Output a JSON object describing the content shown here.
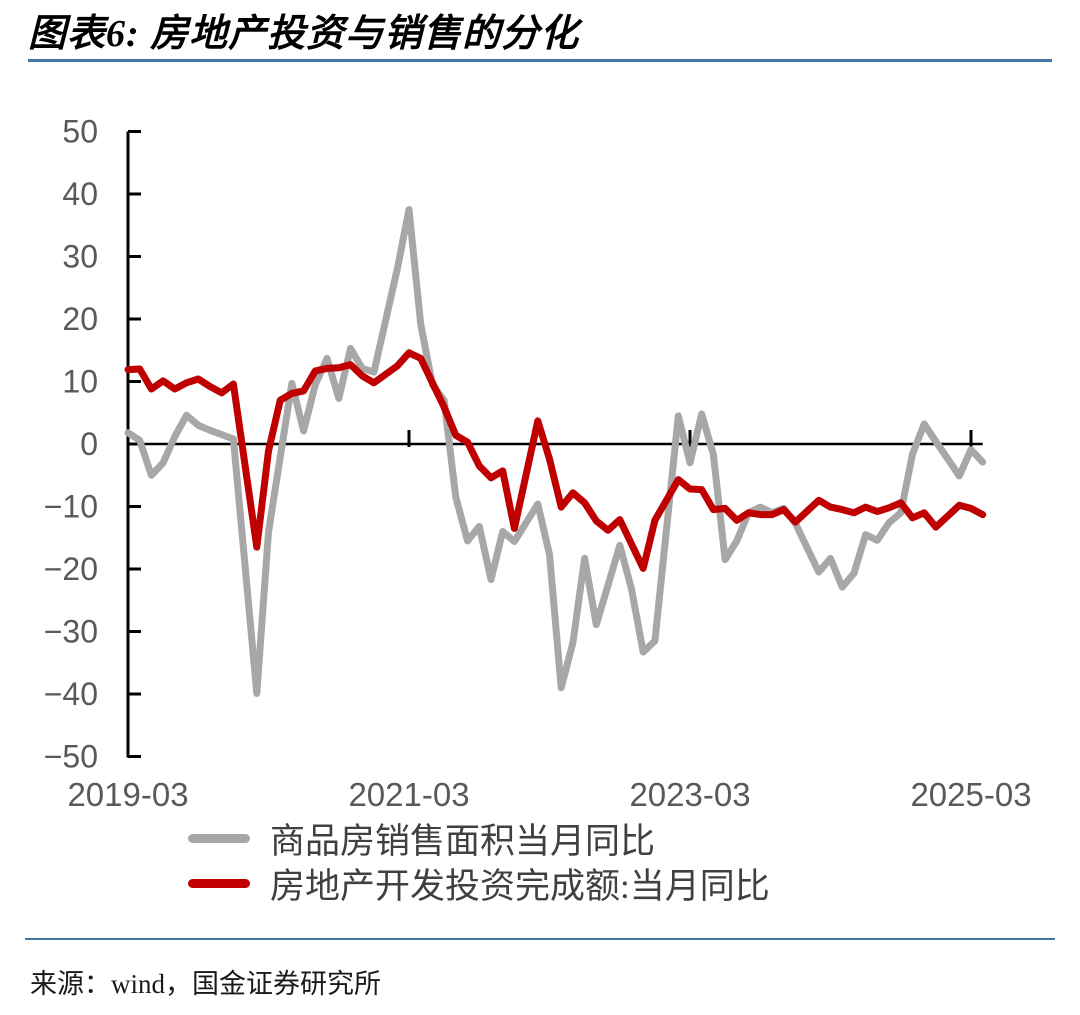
{
  "header": {
    "title": "图表6: 房地产投资与销售的分化"
  },
  "footer": {
    "source": "来源：wind，国金证券研究所"
  },
  "colors": {
    "sales_line": "#A7A7A7",
    "investment_line": "#C00000",
    "axis": "#000000",
    "tick_label": "#595959",
    "rule_blue": "#3F76A3",
    "legend_text": "#404040"
  },
  "legend": [
    {
      "label": "商品房销售面积当月同比",
      "color": "#A7A7A7"
    },
    {
      "label": "房地产开发投资完成额:当月同比",
      "color": "#C00000"
    }
  ],
  "chart_data": {
    "type": "line",
    "x": [
      "2019-03",
      "2019-04",
      "2019-05",
      "2019-06",
      "2019-07",
      "2019-08",
      "2019-09",
      "2019-10",
      "2019-11",
      "2019-12",
      "2020-01",
      "2020-02",
      "2020-03",
      "2020-04",
      "2020-05",
      "2020-06",
      "2020-07",
      "2020-08",
      "2020-09",
      "2020-10",
      "2020-11",
      "2020-12",
      "2021-01",
      "2021-02",
      "2021-03",
      "2021-04",
      "2021-05",
      "2021-06",
      "2021-07",
      "2021-08",
      "2021-09",
      "2021-10",
      "2021-11",
      "2021-12",
      "2022-01",
      "2022-02",
      "2022-03",
      "2022-04",
      "2022-05",
      "2022-06",
      "2022-07",
      "2022-08",
      "2022-09",
      "2022-10",
      "2022-11",
      "2022-12",
      "2023-01",
      "2023-02",
      "2023-03",
      "2023-04",
      "2023-05",
      "2023-06",
      "2023-07",
      "2023-08",
      "2023-09",
      "2023-10",
      "2023-11",
      "2023-12",
      "2024-01",
      "2024-02",
      "2024-03",
      "2024-04",
      "2024-05",
      "2024-06",
      "2024-07",
      "2024-08",
      "2024-09",
      "2024-10",
      "2024-11",
      "2024-12",
      "2025-01",
      "2025-02",
      "2025-03",
      "2025-04"
    ],
    "series": [
      {
        "name": "商品房销售面积当月同比",
        "color": "#A7A7A7",
        "values": [
          1.8,
          0.6,
          -5.0,
          -3.0,
          1.2,
          4.6,
          3.0,
          2.2,
          1.5,
          0.8,
          null,
          -39.9,
          -14.1,
          -2.1,
          9.7,
          2.1,
          9.5,
          13.7,
          7.3,
          15.3,
          12.1,
          11.5,
          null,
          28.0,
          37.5,
          19.2,
          9.5,
          7.0,
          -8.5,
          -15.5,
          -13.2,
          -21.7,
          -14.0,
          -15.6,
          null,
          -9.6,
          -17.7,
          -39.0,
          -31.8,
          -18.3,
          -28.9,
          -22.6,
          -16.2,
          -23.2,
          -33.3,
          -31.5,
          null,
          4.5,
          -3.0,
          4.8,
          -1.7,
          -18.5,
          -15.5,
          -11.0,
          -10.1,
          -11.0,
          -10.3,
          -12.7,
          null,
          -20.5,
          -18.3,
          -22.9,
          -20.7,
          -14.5,
          -15.4,
          -12.6,
          -11.0,
          -1.6,
          3.2,
          0.4,
          null,
          -5.1,
          -0.9,
          -2.9
        ]
      },
      {
        "name": "房地产开发投资完成额:当月同比",
        "color": "#C00000",
        "values": [
          11.9,
          12.0,
          8.8,
          10.1,
          8.8,
          9.8,
          10.4,
          9.2,
          8.2,
          9.6,
          null,
          -16.5,
          -1.1,
          7.0,
          8.1,
          8.5,
          11.7,
          12.1,
          12.2,
          12.7,
          10.9,
          9.8,
          null,
          12.5,
          14.6,
          13.7,
          9.8,
          5.9,
          1.4,
          0.3,
          -3.5,
          -5.4,
          -4.3,
          -13.5,
          null,
          3.7,
          -2.4,
          -10.1,
          -7.8,
          -9.4,
          -12.3,
          -13.8,
          -12.1,
          -16.0,
          -19.9,
          -12.2,
          null,
          -5.7,
          -7.2,
          -7.3,
          -10.5,
          -10.3,
          -12.2,
          -11.0,
          -11.3,
          -11.3,
          -10.5,
          -12.5,
          null,
          -9.0,
          -10.1,
          -10.5,
          -11.0,
          -10.1,
          -10.8,
          -10.2,
          -9.4,
          -11.8,
          -11.0,
          -13.3,
          null,
          -9.8,
          -10.3,
          -11.3
        ]
      }
    ],
    "ylim": [
      -50,
      50
    ],
    "yticks": [
      {
        "value": 50,
        "label": "50"
      },
      {
        "value": 40,
        "label": "40"
      },
      {
        "value": 30,
        "label": "30"
      },
      {
        "value": 20,
        "label": "20"
      },
      {
        "value": 10,
        "label": "10"
      },
      {
        "value": 0,
        "label": "0"
      },
      {
        "value": -10,
        "label": "−10"
      },
      {
        "value": -20,
        "label": "−20"
      },
      {
        "value": -30,
        "label": "−30"
      },
      {
        "value": -40,
        "label": "−40"
      },
      {
        "value": -50,
        "label": "−50"
      }
    ],
    "xticks": [
      {
        "label": "2019-03",
        "month_index": 0,
        "show_tick_mark": false
      },
      {
        "label": "2021-03",
        "month_index": 24,
        "show_tick_mark": true
      },
      {
        "label": "2023-03",
        "month_index": 48,
        "show_tick_mark": true
      },
      {
        "label": "2025-03",
        "month_index": 72,
        "show_tick_mark": true
      }
    ],
    "grid": false,
    "legend_position": "bottom",
    "title": "图表6: 房地产投资与销售的分化"
  }
}
